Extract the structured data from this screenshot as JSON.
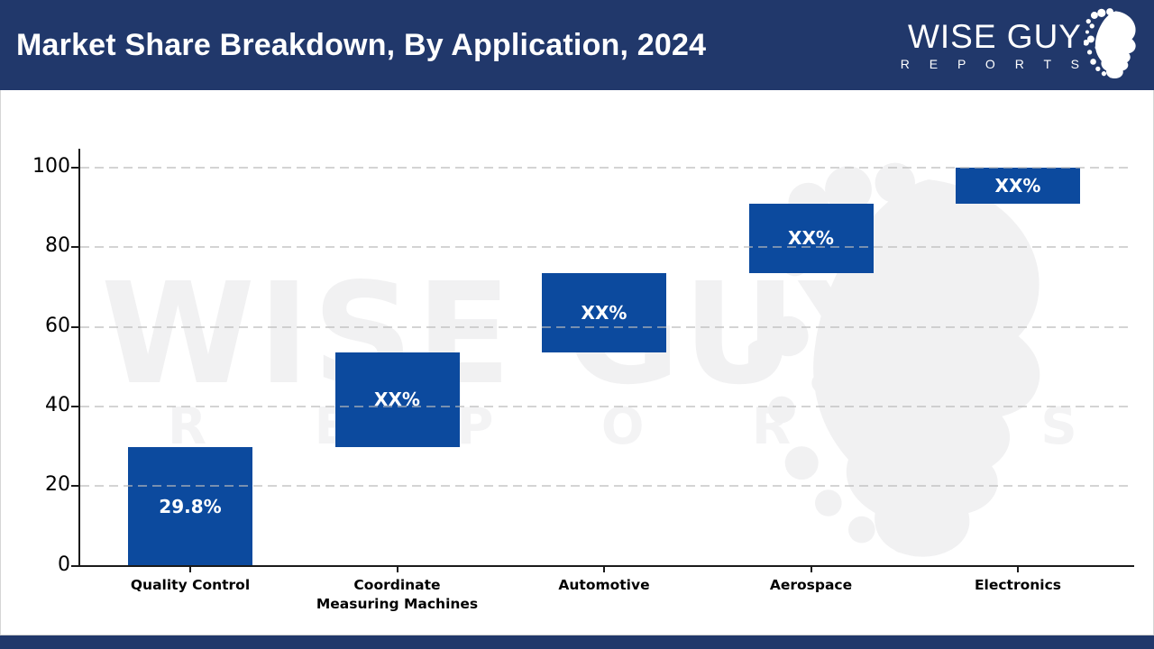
{
  "header": {
    "title": "Market Share Breakdown, By Application, 2024",
    "logo": {
      "line1": "WISE GUY",
      "line2": "R E P O R T S"
    },
    "bg_color": "#21386B"
  },
  "footer": {
    "bg_color": "#21386B"
  },
  "watermark": {
    "line1": "WISE GUY",
    "line2": "R E P O R T S"
  },
  "chart_data": {
    "type": "bar",
    "subtype": "waterfall",
    "title": "Market Share Breakdown, By Application, 2024",
    "xlabel": "",
    "ylabel": "",
    "ylim": [
      0,
      100
    ],
    "yticks": [
      0,
      20,
      40,
      60,
      80,
      100
    ],
    "grid": "horizontal-dashed",
    "legend": "none",
    "bar_color": "#0C4A9E",
    "value_label_color": "#FFFFFF",
    "categories": [
      "Quality Control",
      "Coordinate Measuring Machines",
      "Automotive",
      "Aerospace",
      "Electronics"
    ],
    "values": [
      29.8,
      23.8,
      19.9,
      17.5,
      9.0
    ],
    "bars": [
      {
        "label_lines": [
          "Quality Control"
        ],
        "start": 0,
        "end": 29.8,
        "value_label": "29.8%"
      },
      {
        "label_lines": [
          "Coordinate",
          "Measuring Machines"
        ],
        "start": 29.8,
        "end": 53.6,
        "value_label": "XX%"
      },
      {
        "label_lines": [
          "Automotive"
        ],
        "start": 53.6,
        "end": 73.5,
        "value_label": "XX%"
      },
      {
        "label_lines": [
          "Aerospace"
        ],
        "start": 73.5,
        "end": 91.0,
        "value_label": "XX%"
      },
      {
        "label_lines": [
          "Electronics"
        ],
        "start": 91.0,
        "end": 100.0,
        "value_label": "XX%"
      }
    ]
  }
}
